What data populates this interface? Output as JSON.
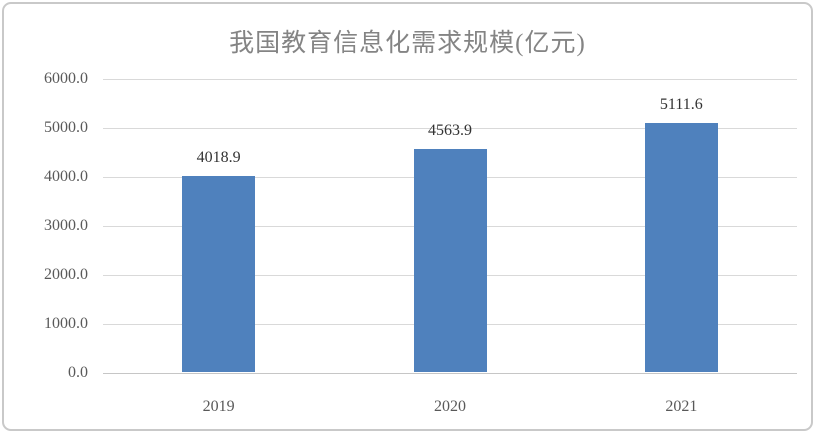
{
  "frame": {
    "background": "#ffffff",
    "border_color": "#c9c9c9"
  },
  "chart_data": {
    "type": "bar",
    "title": "我国教育信息化需求规模(亿元)",
    "categories": [
      "2019",
      "2020",
      "2021"
    ],
    "values": [
      4018.9,
      4563.9,
      5111.6
    ],
    "data_labels": [
      "4018.9",
      "4563.9",
      "5111.6"
    ],
    "xlabel": "",
    "ylabel": "",
    "ylim": [
      0,
      6000
    ],
    "ytick_step": 1000,
    "ytick_labels": [
      "0.0",
      "1000.0",
      "2000.0",
      "3000.0",
      "4000.0",
      "5000.0",
      "6000.0"
    ],
    "grid": true,
    "legend_position": "none",
    "colors": {
      "bar": "#4f81bd",
      "gridline": "#d9d9d9",
      "baseline": "#c6c6c6",
      "title": "#848484",
      "tick_label": "#595959",
      "data_label": "#333333"
    }
  }
}
